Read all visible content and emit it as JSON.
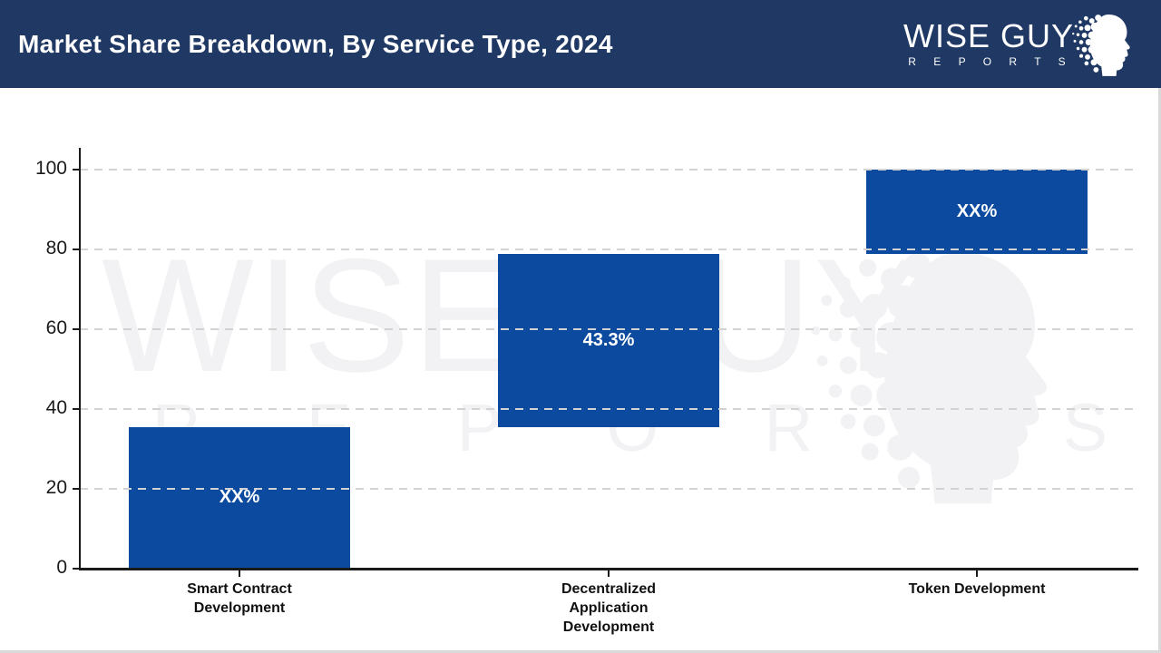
{
  "header": {
    "title": "Market Share Breakdown, By Service Type, 2024",
    "logo": {
      "wordmark": "WISE GUY",
      "reports": "R E P O R T S"
    }
  },
  "watermark": {
    "wordmark": "WISE GUY",
    "reports": "R E P O R T S"
  },
  "colors": {
    "header_bg": "#1f3864",
    "bar": "#0b4a9e",
    "grid": "#d2d2d2",
    "axis": "#1a1a1a",
    "watermark": "#f2f2f4",
    "bar_value_text": "#ffffff"
  },
  "chart_data": {
    "type": "bar",
    "subtype": "floating-waterfall",
    "title": "Market Share Breakdown, By Service Type, 2024",
    "categories": [
      "Smart Contract Development",
      "Decentralized Application Development",
      "Token Development"
    ],
    "category_lines": [
      [
        "Smart Contract",
        "Development"
      ],
      [
        "Decentralized",
        "Application",
        "Development"
      ],
      [
        "Token Development"
      ]
    ],
    "segments": [
      {
        "category": "Smart Contract Development",
        "start": 0,
        "end": 35.5,
        "value": 35.5,
        "label": "XX%"
      },
      {
        "category": "Decentralized Application Development",
        "start": 35.5,
        "end": 78.8,
        "value": 43.3,
        "label": "43.3%"
      },
      {
        "category": "Token Development",
        "start": 78.8,
        "end": 100,
        "value": 21.2,
        "label": "XX%"
      }
    ],
    "ylim": [
      0,
      100
    ],
    "yticks": [
      0,
      20,
      40,
      60,
      80,
      100
    ],
    "xlabel": "",
    "ylabel": "",
    "grid": "horizontal-dashed",
    "legend": "none"
  }
}
